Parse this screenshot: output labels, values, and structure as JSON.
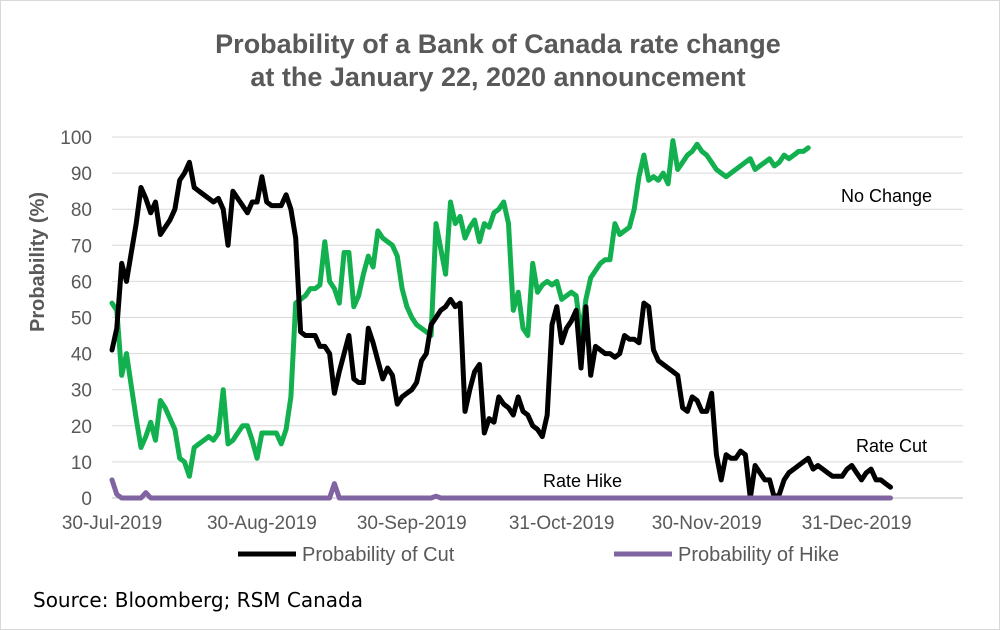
{
  "chart_data": {
    "type": "line",
    "title": [
      "Probability of a Bank of Canada rate change",
      "at the January 22, 2020 announcement"
    ],
    "ylabel": "Probability (%)",
    "xlabel": "",
    "ylim": [
      0,
      100
    ],
    "yticks": [
      0,
      10,
      20,
      30,
      40,
      50,
      60,
      70,
      80,
      90,
      100
    ],
    "x_tick_labels": [
      {
        "label": "30-Jul-2019",
        "day": 0
      },
      {
        "label": "30-Aug-2019",
        "day": 31
      },
      {
        "label": "30-Sep-2019",
        "day": 62
      },
      {
        "label": "31-Oct-2019",
        "day": 93
      },
      {
        "label": "30-Nov-2019",
        "day": 123
      },
      {
        "label": "31-Dec-2019",
        "day": 154
      }
    ],
    "x_range_days": [
      0,
      176
    ],
    "x_units": "days since 30-Jul-2019",
    "annotations": [
      "No Change",
      "Rate Cut",
      "Rate Hike"
    ],
    "series": [
      {
        "name": "Probability of Cut",
        "color": "#000000",
        "in_legend": true,
        "points": [
          [
            0,
            41
          ],
          [
            1,
            47
          ],
          [
            2,
            65
          ],
          [
            3,
            60
          ],
          [
            4,
            68
          ],
          [
            5,
            76
          ],
          [
            6,
            86
          ],
          [
            7,
            83
          ],
          [
            8,
            79
          ],
          [
            9,
            82
          ],
          [
            10,
            73
          ],
          [
            12,
            77
          ],
          [
            13,
            80
          ],
          [
            14,
            88
          ],
          [
            15,
            90
          ],
          [
            16,
            93
          ],
          [
            17,
            86
          ],
          [
            18,
            85
          ],
          [
            19,
            84
          ],
          [
            20,
            83
          ],
          [
            21,
            82
          ],
          [
            22,
            83
          ],
          [
            23,
            80
          ],
          [
            24,
            70
          ],
          [
            25,
            85
          ],
          [
            26,
            83
          ],
          [
            27,
            81
          ],
          [
            28,
            79
          ],
          [
            29,
            82
          ],
          [
            30,
            82
          ],
          [
            31,
            89
          ],
          [
            32,
            82
          ],
          [
            33,
            81
          ],
          [
            35,
            81
          ],
          [
            36,
            84
          ],
          [
            37,
            80
          ],
          [
            38,
            72
          ],
          [
            39,
            46
          ],
          [
            40,
            45
          ],
          [
            42,
            45
          ],
          [
            43,
            42
          ],
          [
            44,
            42
          ],
          [
            45,
            40
          ],
          [
            46,
            29
          ],
          [
            47,
            35
          ],
          [
            48,
            40
          ],
          [
            49,
            45
          ],
          [
            50,
            33
          ],
          [
            51,
            32
          ],
          [
            52,
            32
          ],
          [
            53,
            47
          ],
          [
            54,
            43
          ],
          [
            55,
            38
          ],
          [
            56,
            33
          ],
          [
            57,
            36
          ],
          [
            58,
            34
          ],
          [
            59,
            26
          ],
          [
            60,
            28
          ],
          [
            61,
            29
          ],
          [
            62,
            30
          ],
          [
            63,
            32
          ],
          [
            64,
            38
          ],
          [
            65,
            40
          ],
          [
            66,
            48
          ],
          [
            67,
            50
          ],
          [
            68,
            52
          ],
          [
            69,
            53
          ],
          [
            70,
            55
          ],
          [
            71,
            53
          ],
          [
            72,
            54
          ],
          [
            73,
            24
          ],
          [
            74,
            30
          ],
          [
            75,
            35
          ],
          [
            76,
            37
          ],
          [
            77,
            18
          ],
          [
            78,
            22
          ],
          [
            79,
            21
          ],
          [
            80,
            28
          ],
          [
            81,
            26
          ],
          [
            82,
            25
          ],
          [
            83,
            23
          ],
          [
            84,
            28
          ],
          [
            85,
            24
          ],
          [
            86,
            23
          ],
          [
            87,
            20
          ],
          [
            88,
            19
          ],
          [
            89,
            17
          ],
          [
            90,
            23
          ],
          [
            91,
            48
          ],
          [
            92,
            53
          ],
          [
            93,
            43
          ],
          [
            94,
            47
          ],
          [
            95,
            49
          ],
          [
            96,
            52
          ],
          [
            97,
            36
          ],
          [
            98,
            53
          ],
          [
            99,
            34
          ],
          [
            100,
            42
          ],
          [
            101,
            41
          ],
          [
            102,
            40
          ],
          [
            103,
            40
          ],
          [
            104,
            39
          ],
          [
            105,
            40
          ],
          [
            106,
            45
          ],
          [
            107,
            44
          ],
          [
            108,
            44
          ],
          [
            109,
            43
          ],
          [
            110,
            54
          ],
          [
            111,
            53
          ],
          [
            112,
            41
          ],
          [
            113,
            38
          ],
          [
            114,
            37
          ],
          [
            115,
            36
          ],
          [
            116,
            35
          ],
          [
            117,
            34
          ],
          [
            118,
            25
          ],
          [
            119,
            24
          ],
          [
            120,
            28
          ],
          [
            121,
            27
          ],
          [
            122,
            24
          ],
          [
            123,
            24
          ],
          [
            124,
            29
          ],
          [
            125,
            12
          ],
          [
            126,
            5
          ],
          [
            127,
            12
          ],
          [
            128,
            11
          ],
          [
            129,
            11
          ],
          [
            130,
            13
          ],
          [
            131,
            12
          ],
          [
            132,
            0
          ],
          [
            133,
            9
          ],
          [
            134,
            7
          ],
          [
            135,
            5
          ],
          [
            136,
            5
          ],
          [
            137,
            0
          ],
          [
            138,
            1
          ],
          [
            139,
            5
          ],
          [
            140,
            7
          ],
          [
            141,
            8
          ],
          [
            142,
            9
          ],
          [
            143,
            10
          ],
          [
            144,
            11
          ],
          [
            145,
            8
          ],
          [
            146,
            9
          ],
          [
            147,
            8
          ],
          [
            148,
            7
          ],
          [
            149,
            6
          ],
          [
            150,
            6
          ],
          [
            151,
            6
          ],
          [
            152,
            8
          ],
          [
            153,
            9
          ],
          [
            154,
            7
          ],
          [
            155,
            5
          ],
          [
            156,
            7
          ],
          [
            157,
            8
          ],
          [
            158,
            5
          ],
          [
            159,
            5
          ],
          [
            160,
            4
          ],
          [
            161,
            3
          ]
        ]
      },
      {
        "name": "No Change",
        "color": "#12b04e",
        "in_legend": false,
        "points": [
          [
            0,
            54
          ],
          [
            1,
            52
          ],
          [
            2,
            34
          ],
          [
            3,
            40
          ],
          [
            4,
            31
          ],
          [
            5,
            22
          ],
          [
            6,
            14
          ],
          [
            7,
            17
          ],
          [
            8,
            21
          ],
          [
            9,
            16
          ],
          [
            10,
            27
          ],
          [
            11,
            25
          ],
          [
            12,
            22
          ],
          [
            13,
            19
          ],
          [
            14,
            11
          ],
          [
            15,
            10
          ],
          [
            16,
            6
          ],
          [
            17,
            14
          ],
          [
            18,
            15
          ],
          [
            19,
            16
          ],
          [
            20,
            17
          ],
          [
            21,
            16
          ],
          [
            22,
            18
          ],
          [
            23,
            30
          ],
          [
            24,
            15
          ],
          [
            25,
            16
          ],
          [
            26,
            18
          ],
          [
            27,
            20
          ],
          [
            28,
            20
          ],
          [
            29,
            16
          ],
          [
            30,
            11
          ],
          [
            31,
            18
          ],
          [
            34,
            18
          ],
          [
            35,
            15
          ],
          [
            36,
            19
          ],
          [
            37,
            28
          ],
          [
            38,
            54
          ],
          [
            39,
            55
          ],
          [
            40,
            56
          ],
          [
            41,
            58
          ],
          [
            42,
            58
          ],
          [
            43,
            59
          ],
          [
            44,
            71
          ],
          [
            45,
            60
          ],
          [
            46,
            58
          ],
          [
            47,
            54
          ],
          [
            48,
            68
          ],
          [
            49,
            68
          ],
          [
            50,
            53
          ],
          [
            51,
            56
          ],
          [
            52,
            62
          ],
          [
            53,
            67
          ],
          [
            54,
            64
          ],
          [
            55,
            74
          ],
          [
            56,
            72
          ],
          [
            57,
            71
          ],
          [
            58,
            70
          ],
          [
            59,
            67
          ],
          [
            60,
            58
          ],
          [
            61,
            53
          ],
          [
            62,
            50
          ],
          [
            63,
            48
          ],
          [
            64,
            47
          ],
          [
            65,
            46
          ],
          [
            66,
            45
          ],
          [
            67,
            76
          ],
          [
            68,
            69
          ],
          [
            69,
            62
          ],
          [
            70,
            82
          ],
          [
            71,
            76
          ],
          [
            72,
            78
          ],
          [
            73,
            72
          ],
          [
            74,
            75
          ],
          [
            75,
            77
          ],
          [
            76,
            71
          ],
          [
            77,
            76
          ],
          [
            78,
            75
          ],
          [
            79,
            79
          ],
          [
            80,
            80
          ],
          [
            81,
            82
          ],
          [
            82,
            76
          ],
          [
            83,
            52
          ],
          [
            84,
            57
          ],
          [
            85,
            47
          ],
          [
            86,
            45
          ],
          [
            87,
            65
          ],
          [
            88,
            57
          ],
          [
            89,
            59
          ],
          [
            90,
            60
          ],
          [
            91,
            59
          ],
          [
            92,
            60
          ],
          [
            93,
            55
          ],
          [
            94,
            56
          ],
          [
            95,
            57
          ],
          [
            96,
            56
          ],
          [
            97,
            45
          ],
          [
            98,
            55
          ],
          [
            99,
            61
          ],
          [
            100,
            63
          ],
          [
            101,
            65
          ],
          [
            102,
            66
          ],
          [
            103,
            66
          ],
          [
            104,
            76
          ],
          [
            105,
            73
          ],
          [
            106,
            74
          ],
          [
            107,
            75
          ],
          [
            108,
            80
          ],
          [
            109,
            89
          ],
          [
            110,
            95
          ],
          [
            111,
            88
          ],
          [
            112,
            89
          ],
          [
            113,
            88
          ],
          [
            114,
            90
          ],
          [
            115,
            87
          ],
          [
            116,
            99
          ],
          [
            117,
            91
          ],
          [
            118,
            93
          ],
          [
            119,
            95
          ],
          [
            120,
            96
          ],
          [
            121,
            98
          ],
          [
            122,
            96
          ],
          [
            123,
            95
          ],
          [
            124,
            93
          ],
          [
            125,
            91
          ],
          [
            126,
            90
          ],
          [
            127,
            89
          ],
          [
            128,
            90
          ],
          [
            129,
            91
          ],
          [
            130,
            92
          ],
          [
            131,
            93
          ],
          [
            132,
            94
          ],
          [
            133,
            91
          ],
          [
            134,
            92
          ],
          [
            135,
            93
          ],
          [
            136,
            94
          ],
          [
            137,
            92
          ],
          [
            138,
            93
          ],
          [
            139,
            95
          ],
          [
            140,
            94
          ],
          [
            141,
            95
          ],
          [
            142,
            96
          ],
          [
            143,
            96
          ],
          [
            144,
            97
          ]
        ]
      },
      {
        "name": "Probability of Hike",
        "color": "#8064a2",
        "in_legend": true,
        "points": [
          [
            0,
            5
          ],
          [
            1,
            1
          ],
          [
            2,
            0
          ],
          [
            6,
            0
          ],
          [
            7,
            1.5
          ],
          [
            8,
            0
          ],
          [
            45,
            0
          ],
          [
            46,
            4
          ],
          [
            47,
            0
          ],
          [
            66,
            0
          ],
          [
            67,
            0.5
          ],
          [
            68,
            0
          ],
          [
            161,
            0
          ]
        ]
      }
    ]
  },
  "legend": {
    "cut_label": "Probability of Cut",
    "hike_label": "Probability of Hike"
  },
  "source_text": "Source: Bloomberg; RSM Canada"
}
